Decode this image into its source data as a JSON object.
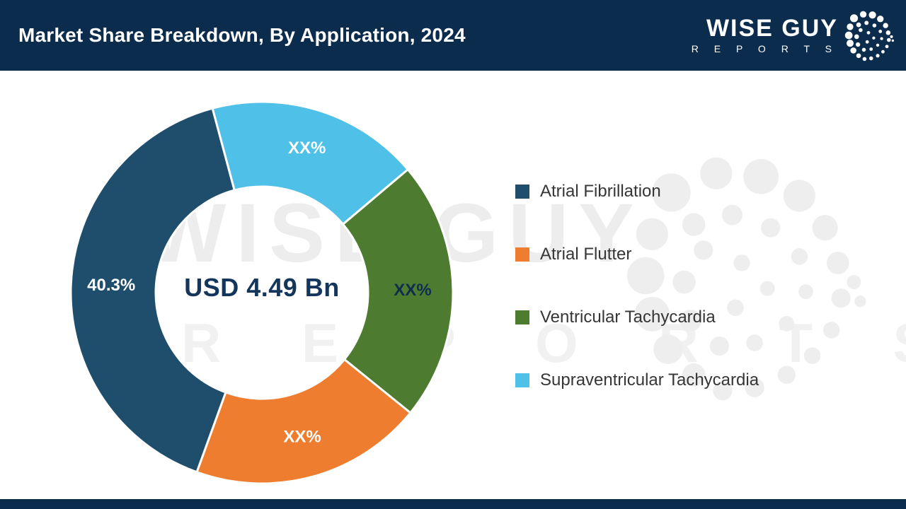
{
  "header": {
    "title": "Market Share Breakdown, By Application, 2024",
    "logo": {
      "line1": "WISE GUY",
      "line2": "R E P O R T S"
    }
  },
  "watermark": {
    "line1": "WISE GUY",
    "line2": "R E P O R T S"
  },
  "colors": {
    "header_bg": "#0c2c4e",
    "footer_bg": "#0c2c4e",
    "center_text": "#14365c",
    "watermark_text": "#ededed",
    "watermark_face": "#eeeeee",
    "logo_face": "#ffffff"
  },
  "chart_data": {
    "type": "pie",
    "subtype": "donut",
    "title": "Market Share Breakdown, By Application, 2024",
    "center_label": "USD 4.49 Bn",
    "start_angle_deg": -15,
    "legend_position": "right",
    "series": [
      {
        "name": "Supraventricular Tachycardia",
        "value": 18.0,
        "display_label": "XX%",
        "color": "#4fc0e8",
        "label_color": "#ffffff"
      },
      {
        "name": "Ventricular Tachycardia",
        "value": 22.0,
        "display_label": "XX%",
        "color": "#4d7c31",
        "label_color": "#0e2e4e"
      },
      {
        "name": "Atrial Flutter",
        "value": 19.7,
        "display_label": "XX%",
        "color": "#ee7d30",
        "label_color": "#ffffff"
      },
      {
        "name": "Atrial Fibrillation",
        "value": 40.3,
        "display_label": "40.3%",
        "color": "#1f4e6d",
        "label_color": "#ffffff"
      }
    ],
    "legend": [
      {
        "label": "Atrial Fibrillation",
        "color": "#1f4e6d"
      },
      {
        "label": "Atrial Flutter",
        "color": "#ee7d30"
      },
      {
        "label": "Ventricular Tachycardia",
        "color": "#4d7c31"
      },
      {
        "label": "Supraventricular Tachycardia",
        "color": "#4fc0e8"
      }
    ]
  }
}
